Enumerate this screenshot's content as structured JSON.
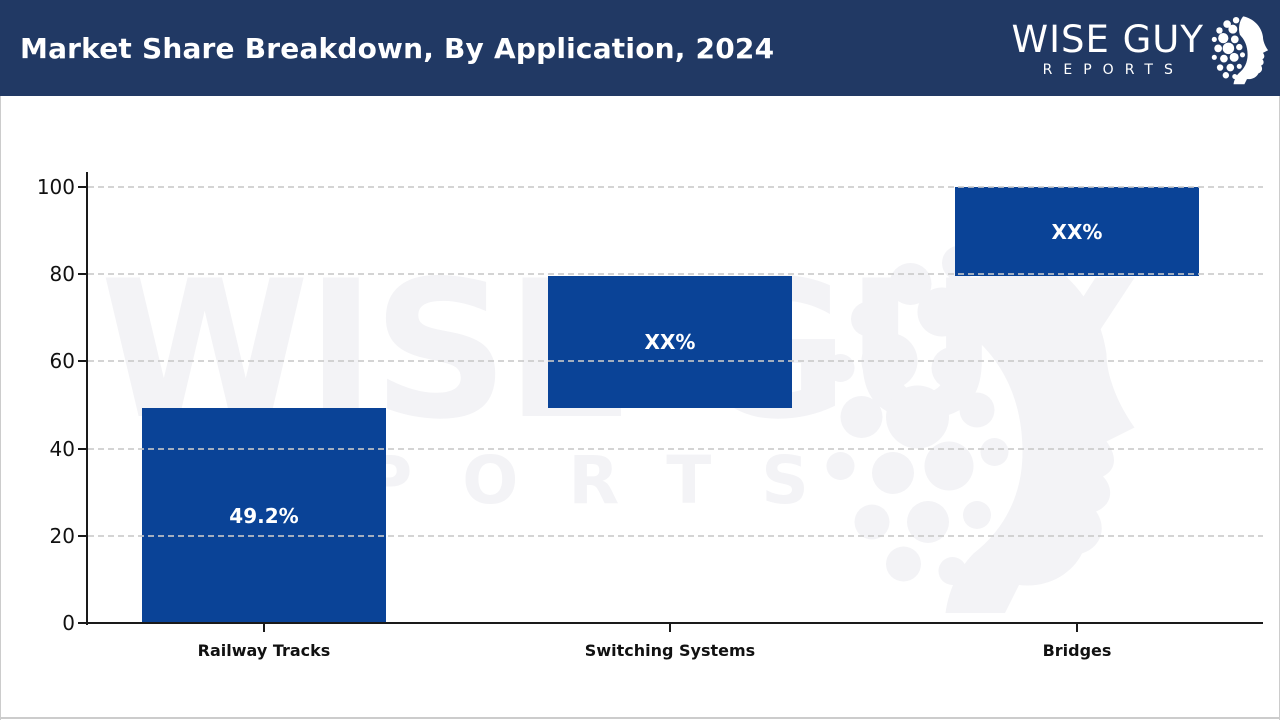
{
  "header": {
    "title": "Market Share Breakdown, By Application, 2024",
    "logo": {
      "wordmark": "WISE GUY",
      "subtext": "REPORTS"
    }
  },
  "watermark": {
    "wordmark": "WISE GUY",
    "subtext": "REPORTS"
  },
  "colors": {
    "header_bg": "#213964",
    "bar_fill": "#0a4397",
    "bar_label": "#ffffff",
    "grid": "#c9c9c9",
    "axis": "#1a1a1a",
    "watermark": "#f3f3f6",
    "hairline": "#cccccc"
  },
  "chart_data": {
    "type": "bar",
    "subtype": "waterfall",
    "title": "Market Share Breakdown, By Application, 2024",
    "categories": [
      "Railway Tracks",
      "Switching Systems",
      "Bridges"
    ],
    "segments": [
      {
        "category": "Railway Tracks",
        "start": 0,
        "end": 49.2,
        "value": 49.2,
        "label": "49.2%"
      },
      {
        "category": "Switching Systems",
        "start": 49.2,
        "end": 79.5,
        "value": 30.3,
        "label": "XX%"
      },
      {
        "category": "Bridges",
        "start": 79.5,
        "end": 100,
        "value": 20.5,
        "label": "XX%"
      }
    ],
    "yticks": [
      0,
      20,
      40,
      60,
      80,
      100
    ],
    "ylim": [
      0,
      100
    ],
    "xlabel": "",
    "ylabel": "",
    "grid": "horizontal-dashed",
    "legend": "none"
  }
}
